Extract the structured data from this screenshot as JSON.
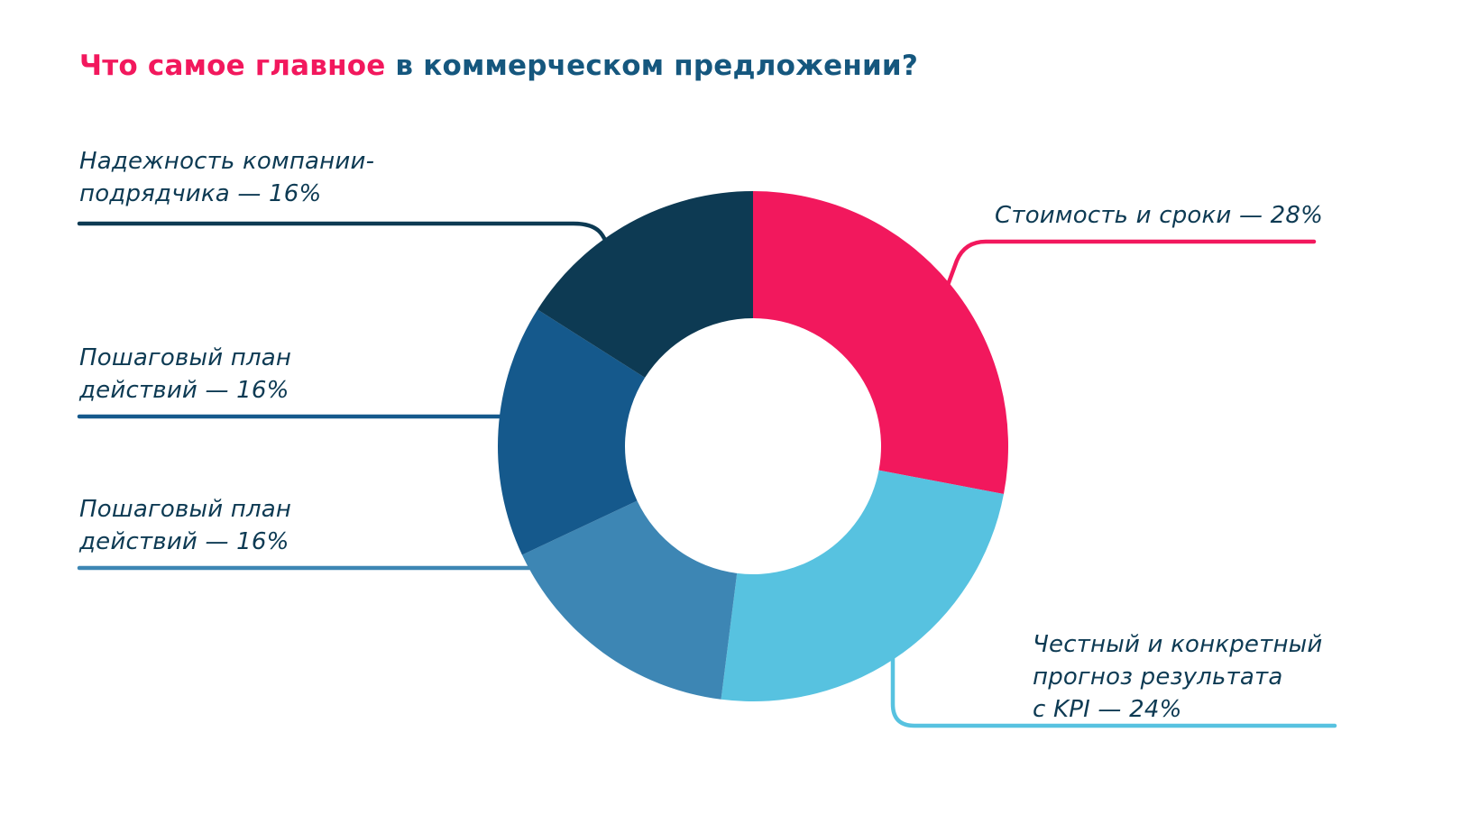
{
  "title": {
    "highlight": "Что самое главное",
    "rest": " в коммерческом предложении?"
  },
  "labels": {
    "reliability": {
      "line1": "Надежность компании-",
      "line2": "подрядчика — 16%"
    },
    "plan1": {
      "line1": "Пошаговый план",
      "line2": "действий — 16%"
    },
    "plan2": {
      "line1": "Пошаговый план",
      "line2": "действий — 16%"
    },
    "cost": {
      "line1": "Стоимость и сроки — 28%"
    },
    "forecast": {
      "line1": "Честный и конкретный",
      "line2": "прогноз результата",
      "line3": "с KPI — 24%"
    }
  },
  "colors": {
    "pink": "#F2185D",
    "cyan": "#57C2E0",
    "medium_blue": "#3D86B4",
    "dark_blue": "#15598C",
    "navy": "#0D3A53",
    "title_blue": "#15577E",
    "background": "#FFFFFF"
  },
  "chart_data": {
    "type": "pie",
    "variant": "donut",
    "title": "Что самое главное в коммерческом предложении?",
    "legend_position": "callout-labels",
    "start_angle_deg": -90,
    "direction": "clockwise",
    "slices": [
      {
        "label": "Стоимость и сроки",
        "value": 28,
        "color": "#F2185D"
      },
      {
        "label": "Честный и конкретный прогноз результата с KPI",
        "value": 24,
        "color": "#57C2E0"
      },
      {
        "label": "Пошаговый план действий",
        "value": 16,
        "color": "#3D86B4"
      },
      {
        "label": "Пошаговый план действий",
        "value": 16,
        "color": "#15598C"
      },
      {
        "label": "Надежность компании-подрядчика",
        "value": 16,
        "color": "#0D3A53"
      }
    ]
  }
}
